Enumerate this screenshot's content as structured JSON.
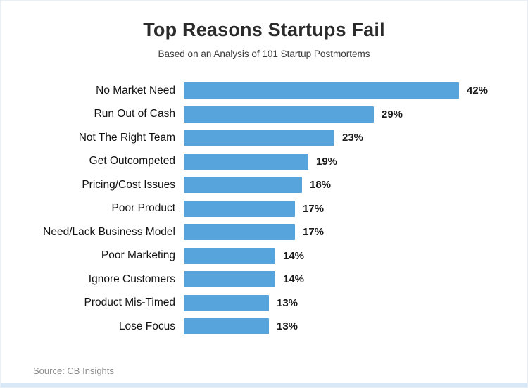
{
  "header": {
    "title": "Top Reasons Startups Fail",
    "subtitle": "Based on an Analysis of 101 Startup Postmortems"
  },
  "footer": {
    "source": "Source: CB Insights"
  },
  "colors": {
    "bar": "#57A4DC",
    "bottom_strip": "#D8E8F6",
    "title_text": "#2B2B2B",
    "value_text": "#1A1A1A",
    "source_text": "#8B8B8B"
  },
  "chart_data": {
    "type": "bar",
    "orientation": "horizontal",
    "title": "Top Reasons Startups Fail",
    "subtitle": "Based on an Analysis of 101 Startup Postmortems",
    "xlabel": "",
    "ylabel": "",
    "grid": false,
    "legend": false,
    "value_suffix": "%",
    "xlim": [
      0,
      45
    ],
    "categories": [
      "No Market Need",
      "Run Out of Cash",
      "Not The Right Team",
      "Get Outcompeted",
      "Pricing/Cost Issues",
      "Poor Product",
      "Need/Lack Business Model",
      "Poor Marketing",
      "Ignore Customers",
      "Product Mis-Timed",
      "Lose Focus"
    ],
    "values": [
      42,
      29,
      23,
      19,
      18,
      17,
      17,
      14,
      14,
      13,
      13
    ]
  }
}
